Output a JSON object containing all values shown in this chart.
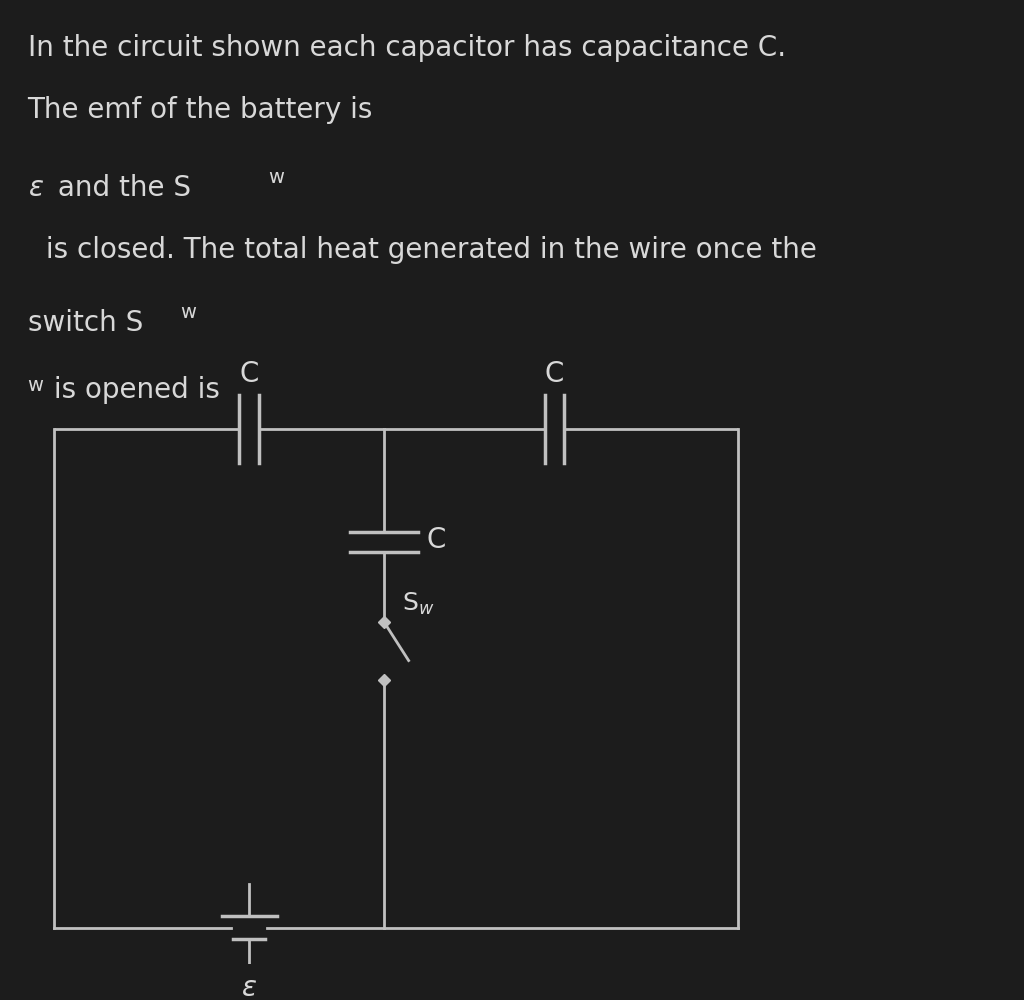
{
  "bg_color": "#1c1c1c",
  "text_color": "#d8d8d8",
  "wire_color": "#c0c0c0",
  "font_size_text": 20,
  "line1": "In the circuit shown each capacitor has capacitance C.",
  "line2": "The emf of the battery is",
  "line3a": " and the S",
  "line3b": "w",
  "line4": " is closed. The total heat generated in the wire once the",
  "line5": "switch S",
  "line5b": "w",
  "line6a": "w",
  "line6b": " is opened is"
}
